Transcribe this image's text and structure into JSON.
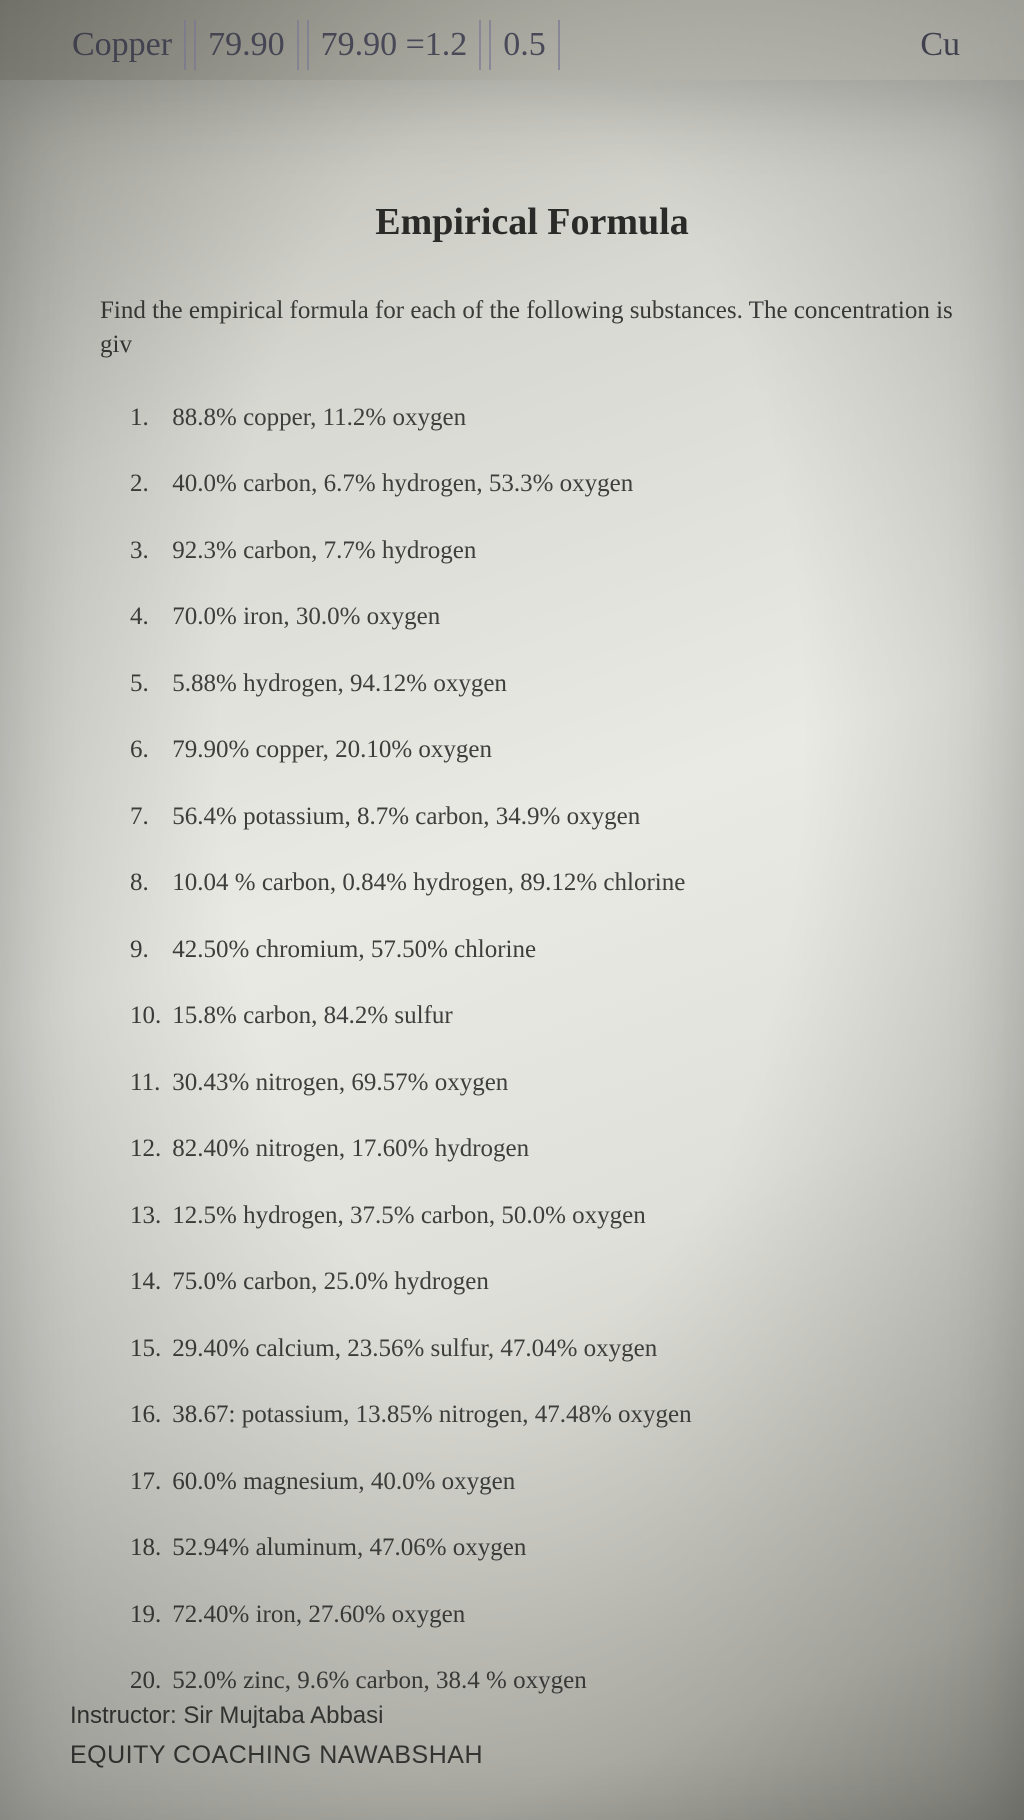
{
  "handwriting": {
    "c1": "Copper",
    "c2": "79.90",
    "c3": "79.90 =1.2",
    "c4": "0.5",
    "tail": "Cu"
  },
  "title": "Empirical Formula",
  "prompt": "Find the empirical formula for each of the following substances.  The concentration is giv",
  "problems": [
    "88.8% copper, 11.2% oxygen",
    "40.0% carbon, 6.7% hydrogen, 53.3% oxygen",
    "92.3% carbon, 7.7% hydrogen",
    "70.0% iron, 30.0% oxygen",
    "5.88% hydrogen, 94.12% oxygen",
    "79.90% copper, 20.10% oxygen",
    "56.4% potassium, 8.7% carbon, 34.9% oxygen",
    "10.04 % carbon, 0.84% hydrogen, 89.12% chlorine",
    "42.50% chromium, 57.50% chlorine",
    "15.8% carbon, 84.2% sulfur",
    "30.43% nitrogen, 69.57% oxygen",
    "82.40% nitrogen, 17.60% hydrogen",
    "12.5% hydrogen, 37.5% carbon, 50.0% oxygen",
    "75.0% carbon, 25.0% hydrogen",
    "29.40% calcium, 23.56% sulfur, 47.04% oxygen",
    "38.67: potassium, 13.85% nitrogen, 47.48% oxygen",
    "60.0% magnesium, 40.0% oxygen",
    "52.94% aluminum, 47.06% oxygen",
    "72.40% iron, 27.60% oxygen",
    "52.0% zinc, 9.6% carbon, 38.4 % oxygen"
  ],
  "footer": {
    "instructor": "Instructor: Sir Mujtaba Abbasi",
    "org": "EQUITY COACHING NAWABSHAH"
  },
  "colors": {
    "text": "#3a3a38",
    "title": "#2a2a28",
    "handwriting": "#4a4a5a",
    "paper_light": "#eaeae4",
    "paper_dark": "#a0a098"
  }
}
